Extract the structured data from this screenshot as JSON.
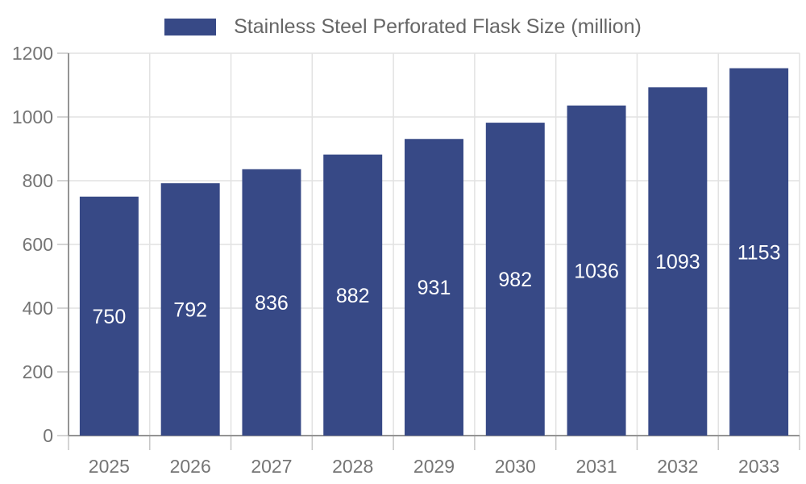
{
  "chart_data": {
    "type": "bar",
    "title": "Stainless Steel Perforated Flask Size (million)",
    "categories": [
      "2025",
      "2026",
      "2027",
      "2028",
      "2029",
      "2030",
      "2031",
      "2032",
      "2033"
    ],
    "values": [
      750,
      792,
      836,
      882,
      931,
      982,
      1036,
      1093,
      1153
    ],
    "xlabel": "",
    "ylabel": "",
    "ylim": [
      0,
      1200
    ],
    "yticks": [
      0,
      200,
      400,
      600,
      800,
      1000,
      1200
    ],
    "legend_position": "top-center",
    "grid": "both",
    "bar_value_labels": "inside-center"
  },
  "colors": {
    "bar": "#374986",
    "bar_label": "#ffffff",
    "grid": "#e2e2e2",
    "axis": "#949494",
    "tick": "#c6c6c6",
    "tick_label": "#757575",
    "legend_text": "#666666",
    "background": "#ffffff"
  }
}
